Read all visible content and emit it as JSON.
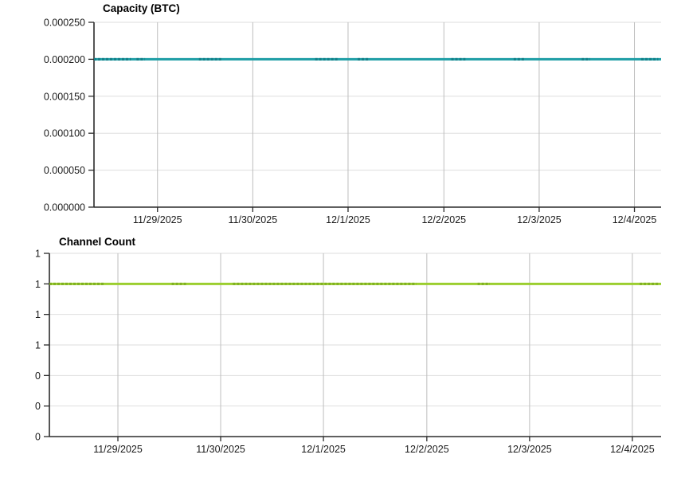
{
  "page": {
    "background": "#ffffff",
    "text_color": "#1a1a1a",
    "axis_color": "#2b2b2b",
    "vertical_grid_color": "#bdbdbd",
    "horizontal_grid_color": "#dedede"
  },
  "chart_data": [
    {
      "type": "line",
      "title": "Capacity (BTC)",
      "x": [
        "11/29/2025",
        "11/30/2025",
        "12/1/2025",
        "12/2/2025",
        "12/3/2025",
        "12/4/2025"
      ],
      "series": [
        {
          "name": "Capacity (BTC)",
          "color": "#1c9da5",
          "dense_marker_color": "#127e87",
          "values": [
            0.0002,
            0.0002,
            0.0002,
            0.0002,
            0.0002,
            0.0002
          ]
        }
      ],
      "ylim": [
        0,
        0.00025
      ],
      "ytick_values": [
        0.00025,
        0.0002,
        0.00015,
        0.0001,
        5e-05,
        0
      ],
      "ytick_labels": [
        "0.000250",
        "0.000200",
        "0.000150",
        "0.000100",
        "0.000050",
        "0.000000"
      ],
      "xlabel": "",
      "ylabel": "",
      "grid": true,
      "legend": "none",
      "marker_segments": [
        [
          0.0,
          0.065
        ],
        [
          0.075,
          0.09
        ],
        [
          0.185,
          0.225
        ],
        [
          0.39,
          0.43
        ],
        [
          0.465,
          0.485
        ],
        [
          0.63,
          0.655
        ],
        [
          0.74,
          0.76
        ],
        [
          0.86,
          0.875
        ],
        [
          0.965,
          0.995
        ]
      ]
    },
    {
      "type": "line",
      "title": "Channel Count",
      "x": [
        "11/29/2025",
        "11/30/2025",
        "12/1/2025",
        "12/2/2025",
        "12/3/2025",
        "12/4/2025"
      ],
      "series": [
        {
          "name": "Channel Count",
          "color": "#9bce2f",
          "dense_marker_color": "#7fae22",
          "values": [
            1,
            1,
            1,
            1,
            1,
            1
          ]
        }
      ],
      "ylim": [
        0,
        1.2
      ],
      "ytick_values": [
        1.2,
        1.0,
        0.8,
        0.6,
        0.4,
        0.2,
        0
      ],
      "ytick_labels": [
        "1",
        "1",
        "1",
        "1",
        "0",
        "0",
        "0"
      ],
      "xlabel": "",
      "ylabel": "",
      "grid": true,
      "legend": "none",
      "marker_segments": [
        [
          0.0,
          0.09
        ],
        [
          0.2,
          0.225
        ],
        [
          0.3,
          0.6
        ],
        [
          0.7,
          0.72
        ],
        [
          0.965,
          0.995
        ]
      ]
    }
  ]
}
